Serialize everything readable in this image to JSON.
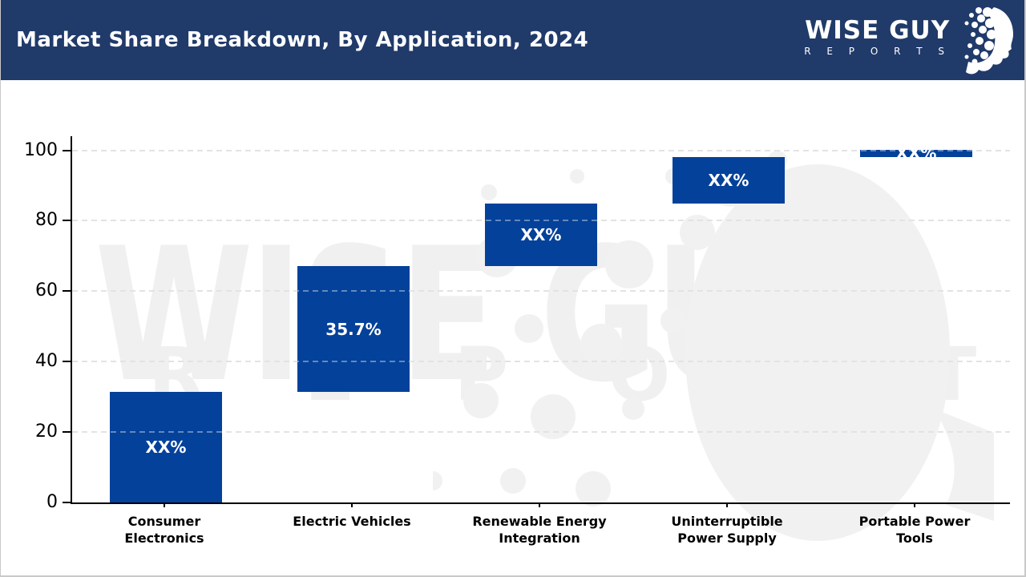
{
  "header": {
    "logo": {
      "line1": "WISE GUY",
      "line2": "R E P O R T S"
    }
  },
  "watermark": {
    "line1": "WISE GUY",
    "line2": "R E P O R T S"
  },
  "colors": {
    "header_bg": "#203a6a",
    "bar": "#04419a",
    "bar_label_text": "#ffffff",
    "grid": "#d2d2d2",
    "grid_over_bar": "rgba(255,255,255,0.38)",
    "axis": "#000000",
    "tick_text": "#000000",
    "watermark": "#f0f0f0",
    "border": "#c9c9c9"
  },
  "chart_data": {
    "type": "bar",
    "subtype": "waterfall",
    "title": "Market Share Breakdown, By Application, 2024",
    "categories": [
      "Consumer Electronics",
      "Electric Vehicles",
      "Renewable Energy Integration",
      "Uninterruptible Power Supply",
      "Portable Power Tools"
    ],
    "category_lines": [
      [
        "Consumer",
        "Electronics"
      ],
      [
        "Electric Vehicles"
      ],
      [
        "Renewable Energy",
        "Integration"
      ],
      [
        "Uninterruptible",
        "Power Supply"
      ],
      [
        "Portable Power",
        "Tools"
      ]
    ],
    "segments": [
      {
        "start": 0,
        "value": 31.4,
        "end": 31.4,
        "label": "XX%"
      },
      {
        "start": 31.4,
        "value": 35.7,
        "end": 67.1,
        "label": "35.7%"
      },
      {
        "start": 67.1,
        "value": 17.8,
        "end": 84.9,
        "label": "XX%"
      },
      {
        "start": 84.9,
        "value": 13.2,
        "end": 98.1,
        "label": "XX%"
      },
      {
        "start": 98.1,
        "value": 2.1,
        "end": 100.2,
        "label": "XX%"
      }
    ],
    "yticks": [
      0,
      20,
      40,
      60,
      80,
      100
    ],
    "ylim": [
      0,
      104
    ],
    "xlabel": "",
    "ylabel": "",
    "grid": "dashed-horizontal",
    "legend": "none"
  }
}
